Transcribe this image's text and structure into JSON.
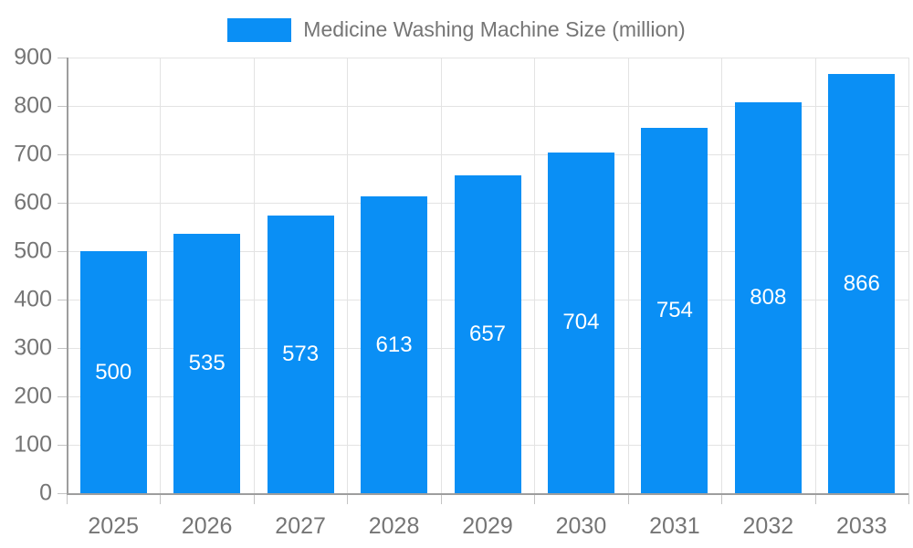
{
  "legend": {
    "label": "Medicine Washing Machine Size (million)"
  },
  "chart_data": {
    "type": "bar",
    "title": "Medicine Washing Machine Size (million)",
    "categories": [
      "2025",
      "2026",
      "2027",
      "2028",
      "2029",
      "2030",
      "2031",
      "2032",
      "2033"
    ],
    "values": [
      500,
      535,
      573,
      613,
      657,
      704,
      754,
      808,
      866
    ],
    "xlabel": "",
    "ylabel": "",
    "ylim": [
      0,
      900
    ],
    "yticks": [
      0,
      100,
      200,
      300,
      400,
      500,
      600,
      700,
      800,
      900
    ],
    "grid": true,
    "legend_position": "top-center",
    "bar_color": "#0a8ff5",
    "bar_label_color": "#ffffff",
    "axis_text_color": "#757575",
    "gridline_color": "#e3e3e3",
    "axis_line_color": "#9e9e9e"
  }
}
